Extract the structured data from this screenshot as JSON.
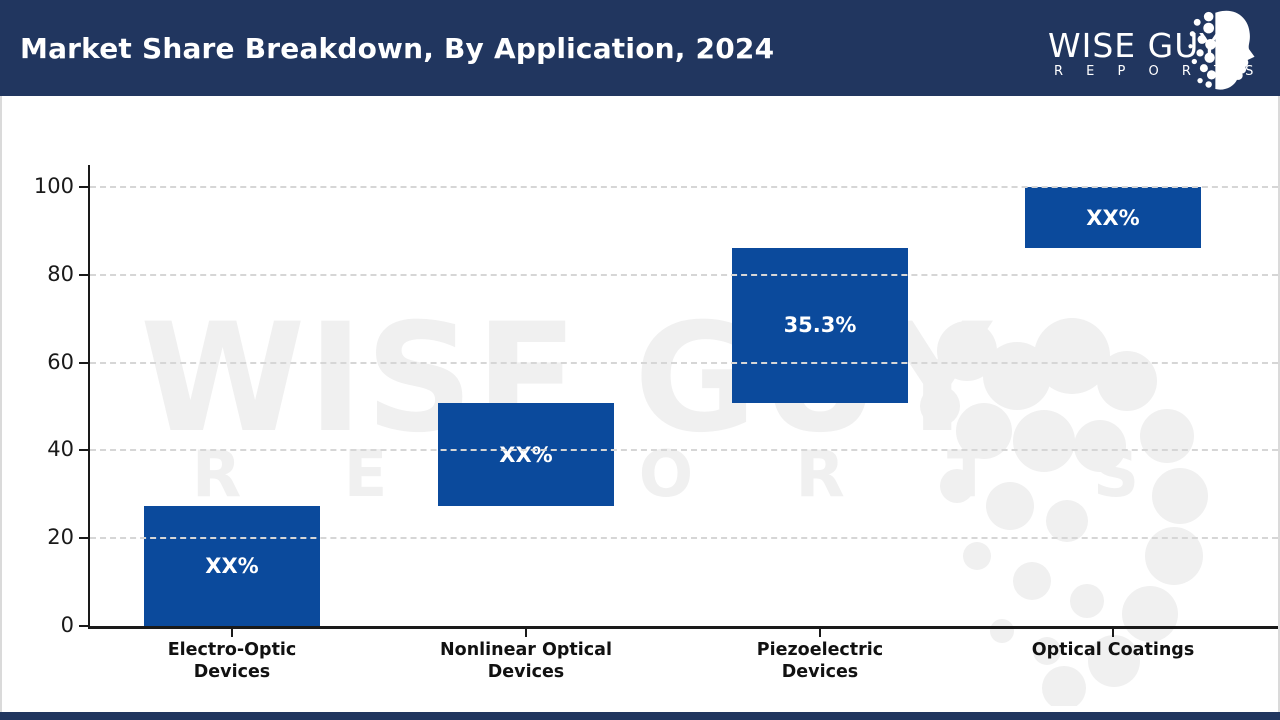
{
  "header": {
    "title": "Market Share Breakdown, By Application, 2024"
  },
  "logo": {
    "name_top": "WISE GUY",
    "name_bottom": "R E P O R T S"
  },
  "watermark": {
    "line1": "WISE GUY",
    "line2": "R E P O R T S"
  },
  "chart_data": {
    "type": "bar",
    "subtype": "waterfall-floating-segments",
    "title": "Market Share Breakdown, By Application, 2024",
    "categories": [
      "Electro-Optic Devices",
      "Nonlinear Optical Devices",
      "Piezoelectric Devices",
      "Optical Coatings"
    ],
    "bars": [
      {
        "category": "Electro-Optic Devices",
        "label_lines": [
          "Electro-Optic",
          "Devices"
        ],
        "start": 0,
        "end": 27.3,
        "value": 27.3,
        "label": "XX%"
      },
      {
        "category": "Nonlinear Optical Devices",
        "label_lines": [
          "Nonlinear Optical",
          "Devices"
        ],
        "start": 27.3,
        "end": 50.8,
        "value": 23.5,
        "label": "XX%"
      },
      {
        "category": "Piezoelectric Devices",
        "label_lines": [
          "Piezoelectric",
          "Devices"
        ],
        "start": 50.8,
        "end": 86.1,
        "value": 35.3,
        "label": "35.3%"
      },
      {
        "category": "Optical Coatings",
        "label_lines": [
          "Optical Coatings"
        ],
        "start": 86.1,
        "end": 100,
        "value": 13.9,
        "label": "XX%"
      }
    ],
    "ylim": [
      0,
      100
    ],
    "yticks": [
      0,
      20,
      40,
      60,
      80,
      100
    ],
    "xlabel": "",
    "ylabel": "",
    "grid": "horizontal-dashed",
    "legend": "none",
    "bar_color": "#0b4a9c"
  },
  "colors": {
    "header_bg": "#21365f",
    "footer_bg": "#21365f",
    "bar": "#0b4a9c",
    "grid": "#d6d6d6",
    "axis": "#1a1a1a",
    "watermark": "#f0f0f0"
  }
}
